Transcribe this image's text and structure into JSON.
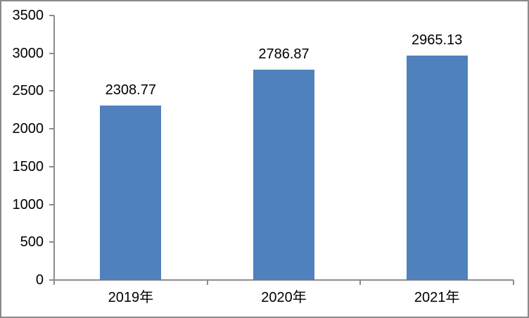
{
  "chart_data": {
    "type": "bar",
    "categories": [
      "2019年",
      "2020年",
      "2021年"
    ],
    "values": [
      2308.77,
      2786.87,
      2965.13
    ],
    "value_labels": [
      "2308.77",
      "2786.87",
      "2965.13"
    ],
    "ylim": [
      0,
      3500
    ],
    "ytick_interval": 500,
    "yticks": [
      "3500",
      "3000",
      "2500",
      "2000",
      "1500",
      "1000",
      "500",
      "0"
    ],
    "grid": false,
    "legend": "none",
    "bar_color": "#4F81BD",
    "axis_color": "#8c8c8c",
    "text_color": "#000000",
    "frame_border_color": "#8a8a8a"
  }
}
